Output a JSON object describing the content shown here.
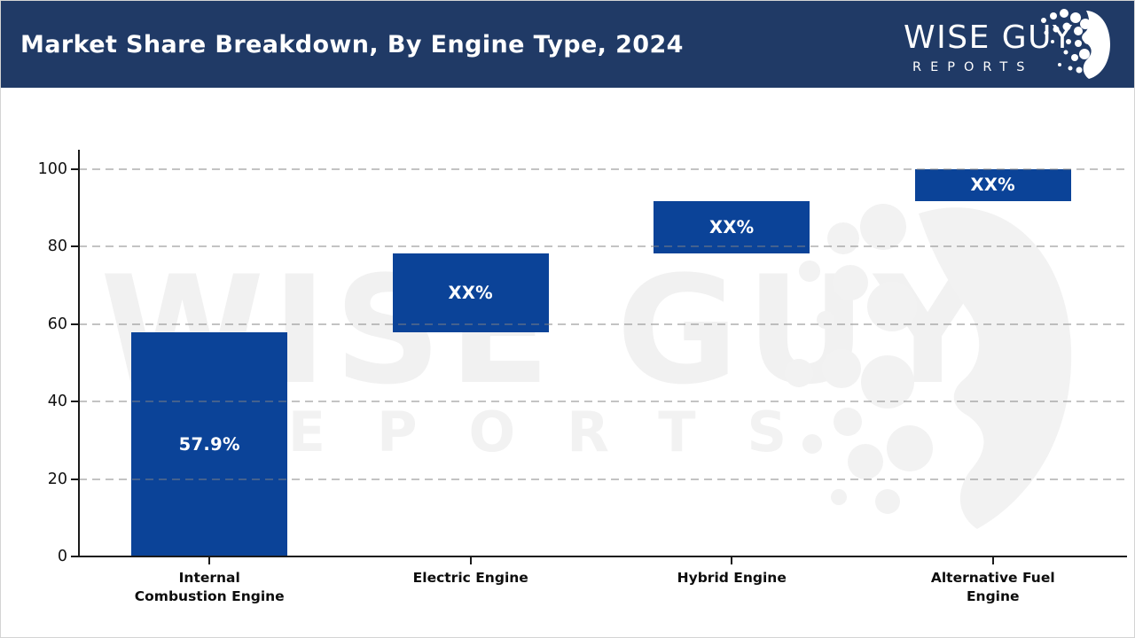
{
  "header": {
    "title": "Market Share Breakdown, By Engine Type, 2024",
    "background": "#203A66",
    "logo": {
      "line1": "WISE GUY",
      "line2": "REPORTS"
    }
  },
  "watermark": {
    "line1": "WISE GUY",
    "line2": "REPORTS"
  },
  "chart_data": {
    "type": "bar",
    "subtype": "waterfall",
    "title": "Market Share Breakdown, By Engine Type, 2024",
    "xlabel": "",
    "ylabel": "",
    "ylim": [
      0,
      105
    ],
    "yticks": [
      0,
      20,
      40,
      60,
      80,
      100
    ],
    "grid": "horizontal-dashed",
    "legend": "none",
    "bar_color": "#0B4398",
    "categories": [
      [
        "Internal",
        "Combustion Engine"
      ],
      [
        "Electric Engine"
      ],
      [
        "Hybrid Engine"
      ],
      [
        "Alternative Fuel",
        "Engine"
      ]
    ],
    "segments": [
      {
        "category": "Internal Combustion Engine",
        "start": 0,
        "end": 57.9,
        "label": "57.9%"
      },
      {
        "category": "Electric Engine",
        "start": 57.9,
        "end": 78.2,
        "label": "XX%"
      },
      {
        "category": "Hybrid Engine",
        "start": 78.2,
        "end": 91.8,
        "label": "XX%"
      },
      {
        "category": "Alternative Fuel Engine",
        "start": 91.8,
        "end": 100,
        "label": "XX%"
      }
    ]
  }
}
